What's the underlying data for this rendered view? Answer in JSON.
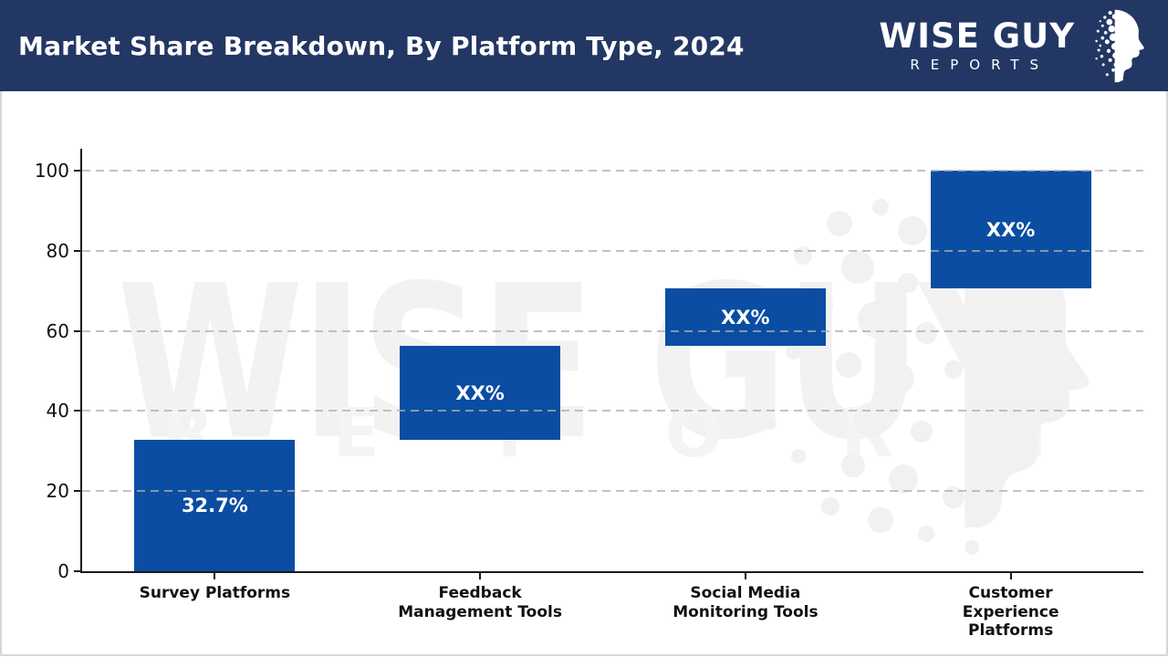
{
  "header": {
    "title": "Market Share Breakdown, By Platform Type, 2024",
    "bg_color": "#233764",
    "logo": {
      "line1": "WISE GUY",
      "line2": "REPORTS",
      "icon": "dotted-face-profile-icon"
    }
  },
  "watermark": {
    "line1": "WISE GUY",
    "line2": "R E P O R T S",
    "icon": "dotted-face-profile-watermark"
  },
  "chart_data": {
    "type": "bar",
    "subtype": "waterfall",
    "title": "Market Share Breakdown, By Platform Type, 2024",
    "categories": [
      "Survey Platforms",
      "Feedback Management Tools",
      "Social Media Monitoring Tools",
      "Customer Experience Platforms"
    ],
    "category_lines": [
      [
        "Survey Platforms"
      ],
      [
        "Feedback",
        "Management Tools"
      ],
      [
        "Social Media",
        "Monitoring Tools"
      ],
      [
        "Customer",
        "Experience",
        "Platforms"
      ]
    ],
    "series": [
      {
        "name": "Market Share",
        "segments": [
          {
            "category": "Survey Platforms",
            "start": 0,
            "end": 32.7,
            "label": "32.7%"
          },
          {
            "category": "Feedback Management Tools",
            "start": 32.7,
            "end": 56.2,
            "label": "XX%"
          },
          {
            "category": "Social Media Monitoring Tools",
            "start": 56.2,
            "end": 70.6,
            "label": "XX%"
          },
          {
            "category": "Customer Experience Platforms",
            "start": 70.6,
            "end": 100,
            "label": "XX%"
          }
        ]
      }
    ],
    "xlabel": "",
    "ylabel": "",
    "ylim": [
      0,
      100
    ],
    "yticks": [
      0,
      20,
      40,
      60,
      80,
      100
    ],
    "grid": true,
    "grid_style": "dashed",
    "legend": "none",
    "bar_color": "#0A4DA3",
    "bar_label_color": "#ffffff",
    "axis_color": "#1a1a1a"
  }
}
